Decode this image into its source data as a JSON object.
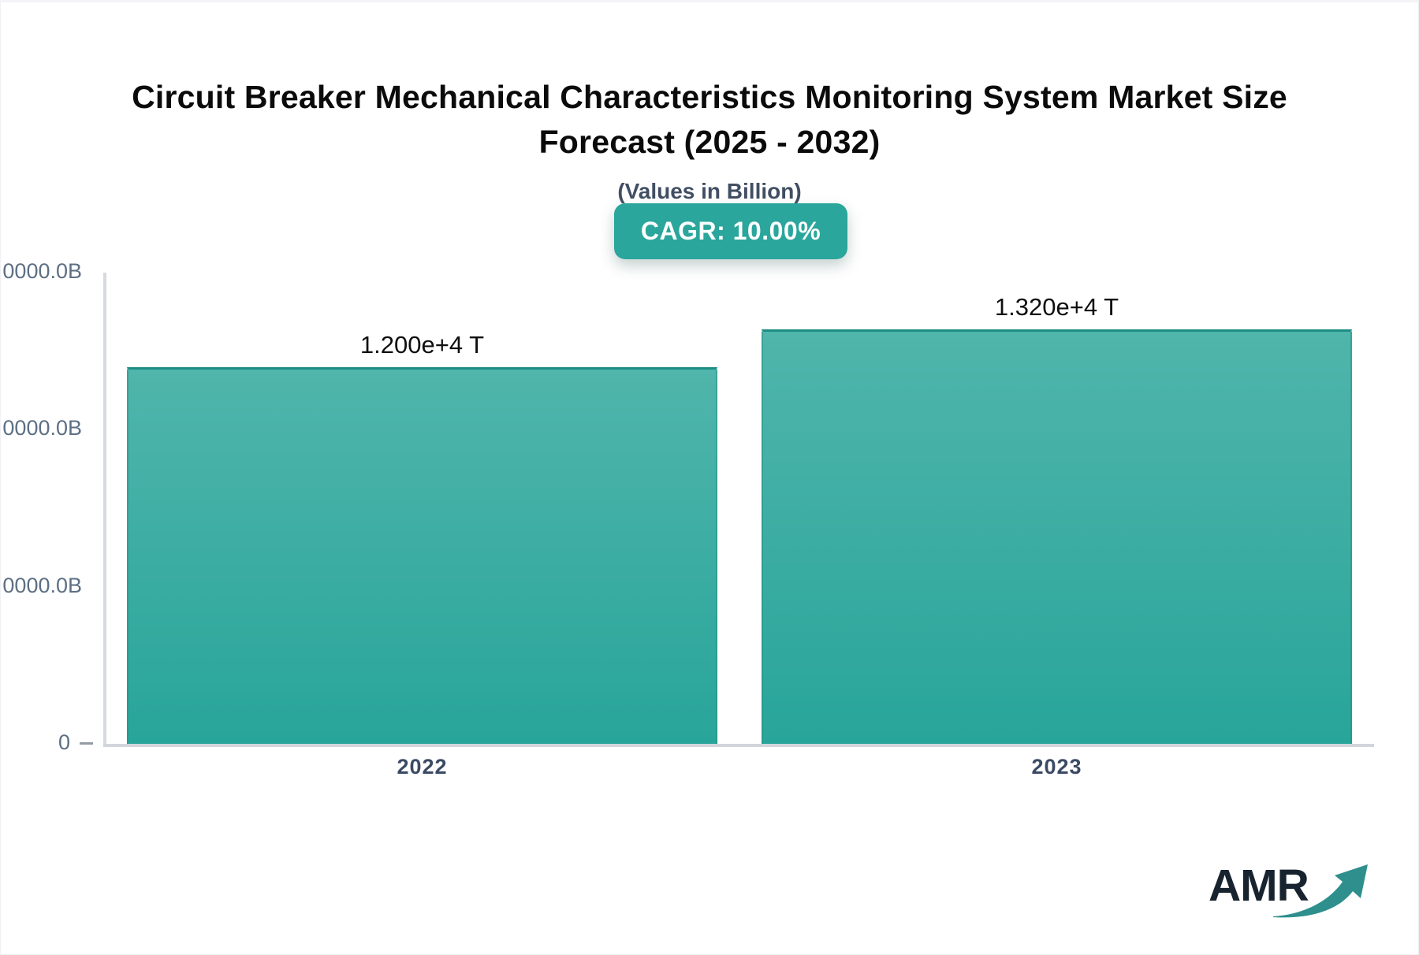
{
  "header": {
    "title_line1": "Circuit Breaker Mechanical Characteristics Monitoring System Market Size",
    "title_line2": "Forecast (2025 - 2032)",
    "subtitle": "(Values in Billion)",
    "cagr_label": "CAGR: 10.00%"
  },
  "footer": {
    "logo_text": "AMR"
  },
  "colors": {
    "bar_gradient_top": "#50b5ab",
    "bar_gradient_bottom": "#28a59a",
    "bar_border": "#1d8d84",
    "badge_background": "#2aa69c",
    "axis_line": "#d4d7dd",
    "y_tick_label": "#5d6f84",
    "x_tick_label": "#3b4a64",
    "logo_arrow": "#2e8f8d"
  },
  "chart_data": {
    "type": "bar",
    "title": "Circuit Breaker Mechanical Characteristics Monitoring System Market Size Forecast (2025 - 2032)",
    "subtitle": "(Values in Billion)",
    "unit": "Billion",
    "cagr_percent": 10.0,
    "categories": [
      "2022",
      "2023"
    ],
    "values": [
      12000,
      13200
    ],
    "bar_value_labels": [
      "1.200e+4 T",
      "1.320e+4 T"
    ],
    "ylim": [
      0,
      15000
    ],
    "y_ticks": [
      {
        "value": 15000,
        "label": "0000.0B",
        "dash": false
      },
      {
        "value": 10000,
        "label": "0000.0B",
        "dash": false
      },
      {
        "value": 5000,
        "label": "0000.0B",
        "dash": false
      },
      {
        "value": 0,
        "label": "0",
        "dash": true
      }
    ],
    "grid": false,
    "legend": false
  }
}
